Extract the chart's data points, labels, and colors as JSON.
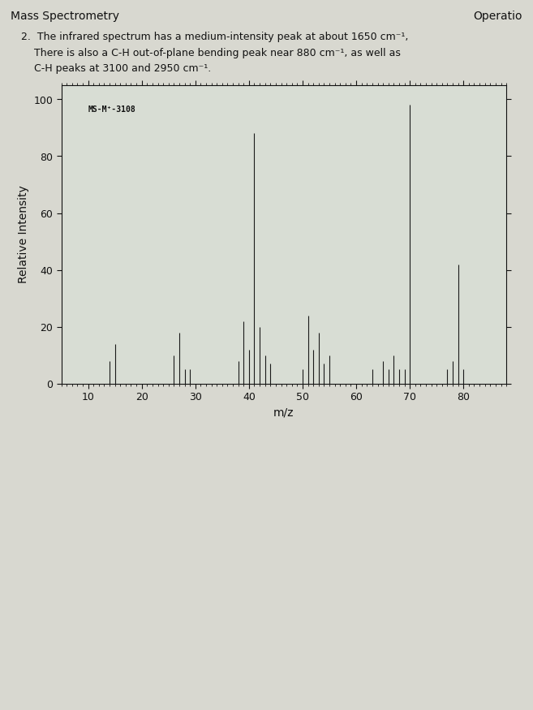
{
  "title_left": "Mass Spectrometry",
  "title_right": "Operatio",
  "annotation": "MS-M⁺-3108",
  "paragraph_line1": "2.  The infrared spectrum has a medium-intensity peak at about 1650 cm⁻¹,",
  "paragraph_line2": "    There is also a C-H out-of-plane bending peak near 880 cm⁻¹, as well as",
  "paragraph_line3": "    C-H peaks at 3100 and 2950 cm⁻¹.",
  "xlabel": "m/z",
  "ylabel": "Relative Intensity",
  "xlim": [
    5,
    88
  ],
  "ylim": [
    0,
    105
  ],
  "xticks": [
    10,
    20,
    30,
    40,
    50,
    60,
    70,
    80
  ],
  "yticks": [
    0,
    20,
    40,
    60,
    80,
    100
  ],
  "peaks": [
    {
      "mz": 14,
      "intensity": 8
    },
    {
      "mz": 15,
      "intensity": 14
    },
    {
      "mz": 26,
      "intensity": 10
    },
    {
      "mz": 27,
      "intensity": 18
    },
    {
      "mz": 28,
      "intensity": 5
    },
    {
      "mz": 29,
      "intensity": 5
    },
    {
      "mz": 38,
      "intensity": 8
    },
    {
      "mz": 39,
      "intensity": 22
    },
    {
      "mz": 40,
      "intensity": 12
    },
    {
      "mz": 41,
      "intensity": 88
    },
    {
      "mz": 42,
      "intensity": 20
    },
    {
      "mz": 43,
      "intensity": 10
    },
    {
      "mz": 44,
      "intensity": 7
    },
    {
      "mz": 50,
      "intensity": 5
    },
    {
      "mz": 51,
      "intensity": 24
    },
    {
      "mz": 52,
      "intensity": 12
    },
    {
      "mz": 53,
      "intensity": 18
    },
    {
      "mz": 54,
      "intensity": 7
    },
    {
      "mz": 55,
      "intensity": 10
    },
    {
      "mz": 63,
      "intensity": 5
    },
    {
      "mz": 65,
      "intensity": 8
    },
    {
      "mz": 66,
      "intensity": 5
    },
    {
      "mz": 67,
      "intensity": 10
    },
    {
      "mz": 68,
      "intensity": 5
    },
    {
      "mz": 69,
      "intensity": 5
    },
    {
      "mz": 70,
      "intensity": 98
    },
    {
      "mz": 77,
      "intensity": 5
    },
    {
      "mz": 78,
      "intensity": 8
    },
    {
      "mz": 79,
      "intensity": 42
    },
    {
      "mz": 80,
      "intensity": 5
    }
  ],
  "bg_color": "#d8d8d0",
  "plot_bg_color": "#d8ddd4",
  "line_color": "#1a1a1a",
  "text_color": "#111111",
  "annotation_fontsize": 7,
  "axis_fontsize": 9,
  "label_fontsize": 10,
  "title_fontsize": 10,
  "para_fontsize": 9
}
